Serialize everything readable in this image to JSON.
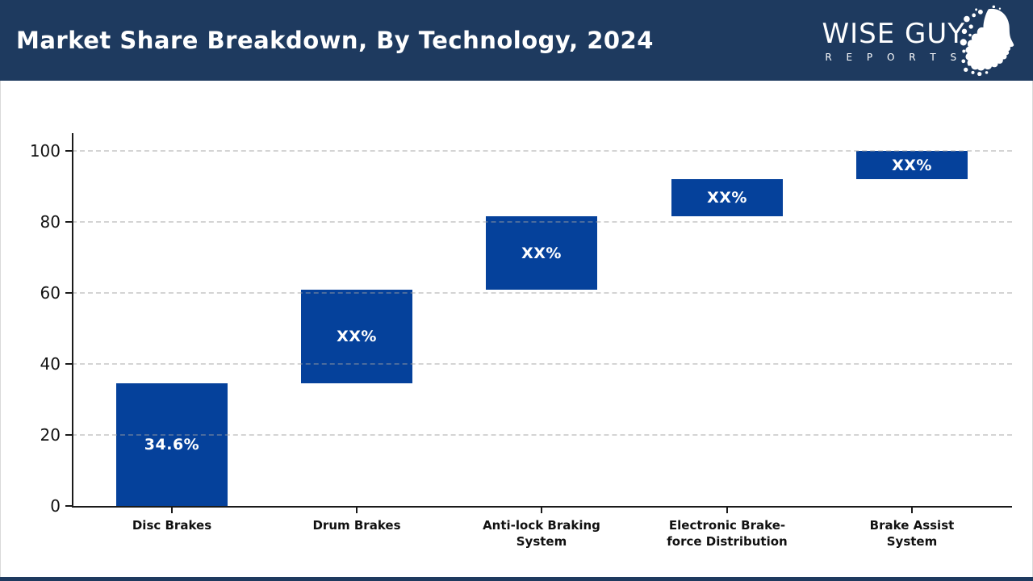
{
  "header": {
    "title": "Market Share Breakdown, By Technology, 2024",
    "bg_color": "#1e3a5f",
    "logo": {
      "line1": "WISE GUY",
      "line2": "R E P O R T S"
    }
  },
  "watermark": {
    "line1": "WISE GUY",
    "line2": "R E P O R T S"
  },
  "chart_data": {
    "type": "bar",
    "subtype": "floating-waterfall",
    "title": "Market Share Breakdown, By Technology, 2024",
    "xlabel": "",
    "ylabel": "",
    "ylim": [
      0,
      105
    ],
    "yticks": [
      0,
      20,
      40,
      60,
      80,
      100
    ],
    "grid": "horizontal-dashed",
    "legend": "none",
    "categories": [
      "Disc Brakes",
      "Drum Brakes",
      "Anti-lock Braking System",
      "Electronic Brake-force Distribution",
      "Brake Assist System"
    ],
    "category_label_lines": [
      [
        "Disc Brakes"
      ],
      [
        "Drum Brakes"
      ],
      [
        "Anti-lock Braking",
        "System"
      ],
      [
        "Electronic Brake-",
        "force Distribution"
      ],
      [
        "Brake Assist",
        "System"
      ]
    ],
    "segments": [
      {
        "category": "Disc Brakes",
        "start": 0,
        "end": 34.6,
        "label": "34.6%"
      },
      {
        "category": "Drum Brakes",
        "start": 34.6,
        "end": 60.8,
        "label": "XX%"
      },
      {
        "category": "Anti-lock Braking System",
        "start": 60.8,
        "end": 81.5,
        "label": "XX%"
      },
      {
        "category": "Electronic Brake-force Distribution",
        "start": 81.5,
        "end": 92.0,
        "label": "XX%"
      },
      {
        "category": "Brake Assist System",
        "start": 92.0,
        "end": 100.0,
        "label": "XX%"
      }
    ],
    "bar_color": "#05419b",
    "value_label_color": "#ffffff",
    "axis_color": "#1a1a1a",
    "grid_color": "#c9c9c9"
  },
  "colors": {
    "header_navy": "#1e3a5f",
    "bar_blue": "#05419b",
    "watermark_gray": "#f1f1f3",
    "background": "#ffffff"
  }
}
